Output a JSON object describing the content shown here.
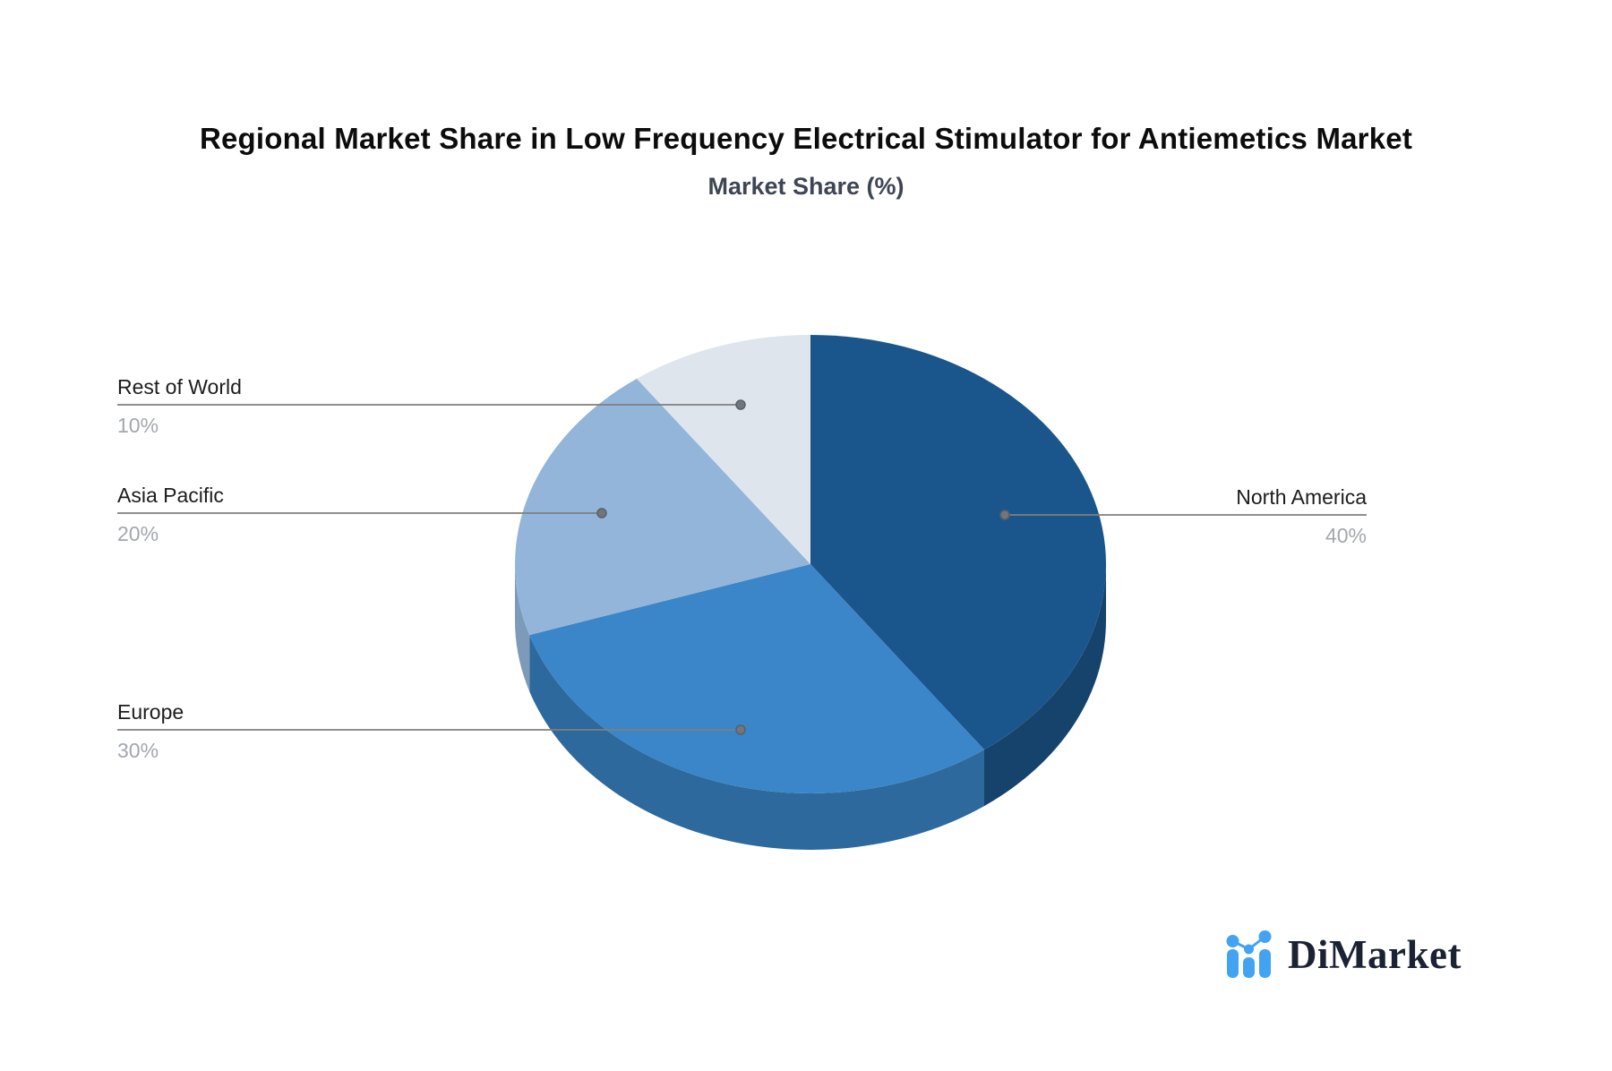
{
  "title": "Regional Market Share in Low Frequency Electrical Stimulator for Antiemetics Market",
  "subtitle": "Market Share (%)",
  "chart_data": {
    "type": "pie",
    "title": "Regional Market Share in Low Frequency Electrical Stimulator for Antiemetics Market",
    "subtitle": "Market Share (%)",
    "unit": "%",
    "effect": "3d",
    "direction": "clockwise",
    "start_angle_deg": 0,
    "legend_position": "none",
    "slices": [
      {
        "label": "North America",
        "value": 40,
        "display": "40%",
        "color": "#1A568C",
        "side_color": "#16436C",
        "label_side": "right"
      },
      {
        "label": "Europe",
        "value": 30,
        "display": "30%",
        "color": "#3A86C8",
        "side_color": "#2D699C",
        "label_side": "left"
      },
      {
        "label": "Asia Pacific",
        "value": 20,
        "display": "20%",
        "color": "#93B5DA",
        "side_color": "#7D9AB9",
        "label_side": "left"
      },
      {
        "label": "Rest of World",
        "value": 10,
        "display": "10%",
        "color": "#DFE5ED",
        "side_color": "#C3CCD9",
        "label_side": "left"
      }
    ],
    "leader_line_color": "#7f7f7f",
    "label_name_color": "#1d1d1d",
    "label_value_color": "#a3a7ae"
  },
  "branding": {
    "logo_text": "DiMarket",
    "logo_icon": "bar-line-chart-icon",
    "logo_icon_color": "#43A3F3",
    "logo_text_color": "#1b2333"
  }
}
